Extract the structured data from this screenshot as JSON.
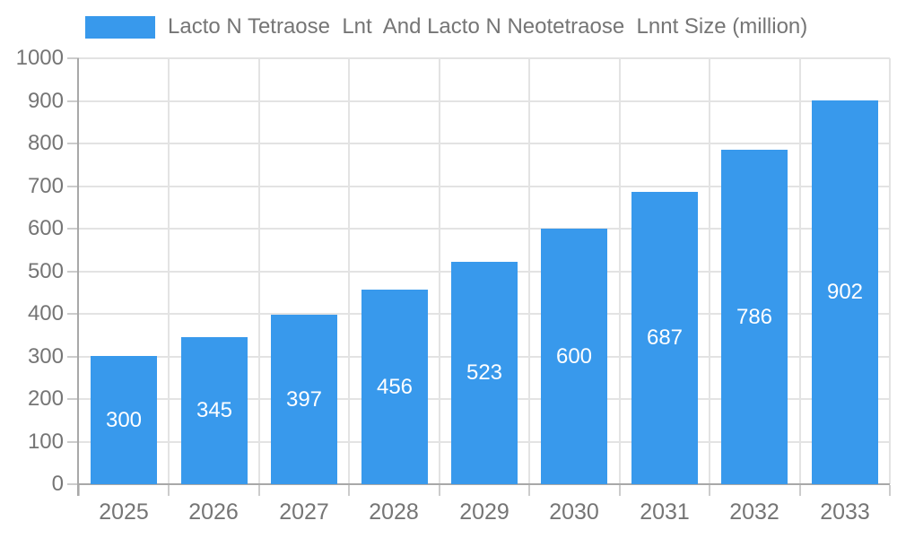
{
  "legend": {
    "label": "Lacto N Tetraose  Lnt  And Lacto N Neotetraose  Lnnt Size (million)",
    "swatch_color": "#3899EC"
  },
  "chart_data": {
    "type": "bar",
    "title": "Lacto N Tetraose  Lnt  And Lacto N Neotetraose  Lnnt Size (million)",
    "categories": [
      "2025",
      "2026",
      "2027",
      "2028",
      "2029",
      "2030",
      "2031",
      "2032",
      "2033"
    ],
    "values": [
      300,
      345,
      397,
      456,
      523,
      600,
      687,
      786,
      902
    ],
    "xlabel": "",
    "ylabel": "",
    "ylim": [
      0,
      1000
    ],
    "yticks": [
      0,
      100,
      200,
      300,
      400,
      500,
      600,
      700,
      800,
      900,
      1000
    ],
    "grid": true,
    "legend_position": "top-left",
    "bar_color": "#3899EC",
    "value_label_color": "#ffffff"
  },
  "colors": {
    "bar": "#3899EC",
    "axis_text": "#757575",
    "grid_line": "#e3e3e3",
    "axis_line": "#a8a8a8",
    "tick_line": "#cccccc",
    "background": "#ffffff"
  }
}
